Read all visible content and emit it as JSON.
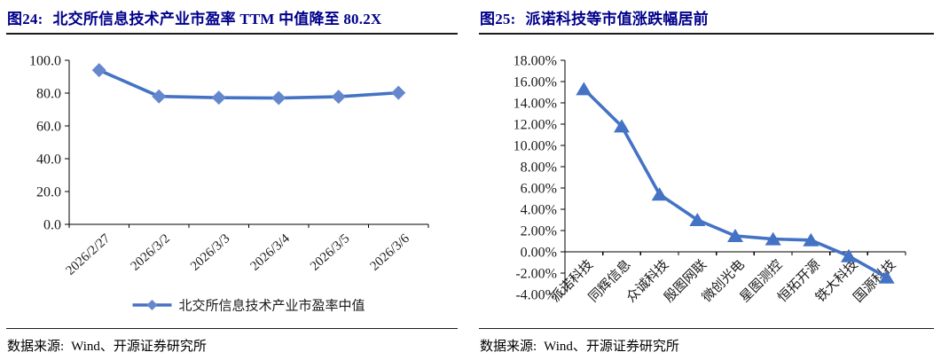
{
  "figures": [
    {
      "title_prefix": "图24:",
      "title_text": "北交所信息技术产业市盈率 TTM 中值降至 80.2X",
      "source_label": "数据来源:",
      "source_text": "Wind、开源证券研究所"
    },
    {
      "title_prefix": "图25:",
      "title_text": "派诺科技等市值涨跌幅居前",
      "source_label": "数据来源:",
      "source_text": "Wind、开源证券研究所"
    }
  ],
  "colors": {
    "title": "#00008B",
    "line": "#4472C4",
    "diamond_marker": "#6487CE",
    "triangle_marker": "#4472C4",
    "axis": "#000000",
    "text": "#1a1a1a"
  },
  "chart_data": [
    {
      "type": "line",
      "title": "图24: 北交所信息技术产业市盈率 TTM 中值降至 80.2X",
      "categories": [
        "2026/2/27",
        "2026/3/2",
        "2026/3/3",
        "2026/3/4",
        "2026/3/5",
        "2026/3/6"
      ],
      "series": [
        {
          "name": "北交所信息技术产业市盈率中值",
          "values": [
            94.0,
            78.0,
            77.2,
            77.0,
            77.8,
            80.2
          ]
        }
      ],
      "xlabel": "",
      "ylabel": "",
      "ylim": [
        0,
        100
      ],
      "ytick_step": 20,
      "ytick_decimals": 1,
      "ytick_suffix": "",
      "x_axis_at": 0,
      "marker": "diamond",
      "grid": false,
      "legend_position": "bottom"
    },
    {
      "type": "line",
      "title": "图25: 派诺科技等市值涨跌幅居前",
      "categories": [
        "派诺科技",
        "同辉信息",
        "众诚科技",
        "殷图网联",
        "微创光电",
        "星图测控",
        "恒拓开源",
        "铁大科技",
        "国源科技"
      ],
      "series": [
        {
          "name": "",
          "values": [
            15.3,
            11.8,
            5.4,
            3.0,
            1.5,
            1.2,
            1.1,
            -0.4,
            -2.4
          ]
        }
      ],
      "xlabel": "",
      "ylabel": "",
      "ylim": [
        -4,
        18
      ],
      "ytick_step": 2,
      "ytick_decimals": 2,
      "ytick_suffix": "%",
      "x_axis_at": 0,
      "marker": "triangle",
      "grid": false,
      "legend_position": "none"
    }
  ]
}
